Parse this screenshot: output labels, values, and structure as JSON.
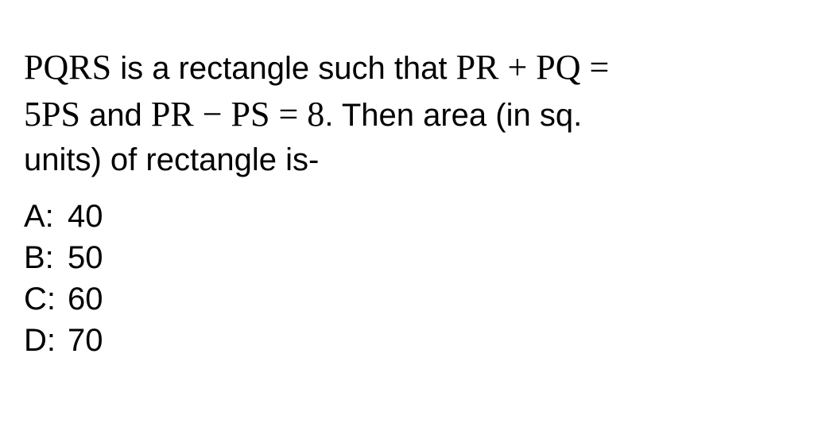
{
  "question": {
    "line1_part1": "PQRS",
    "line1_part2": " is a rectangle such that ",
    "line1_part3": "PR + PQ =",
    "line2_part1": "5PS",
    "line2_part2": " and ",
    "line2_part3": "PR − PS = 8",
    "line2_part4": ". Then area (in sq.",
    "line3": "units) of rectangle is-"
  },
  "options": [
    {
      "letter": "A:",
      "value": "40"
    },
    {
      "letter": "B:",
      "value": "50"
    },
    {
      "letter": "C:",
      "value": "60"
    },
    {
      "letter": "D:",
      "value": "70"
    }
  ],
  "colors": {
    "background": "#ffffff",
    "text": "#000000"
  },
  "typography": {
    "body_fontsize": 40,
    "math_fontsize": 44,
    "body_font": "Arial",
    "math_font": "Times New Roman"
  }
}
